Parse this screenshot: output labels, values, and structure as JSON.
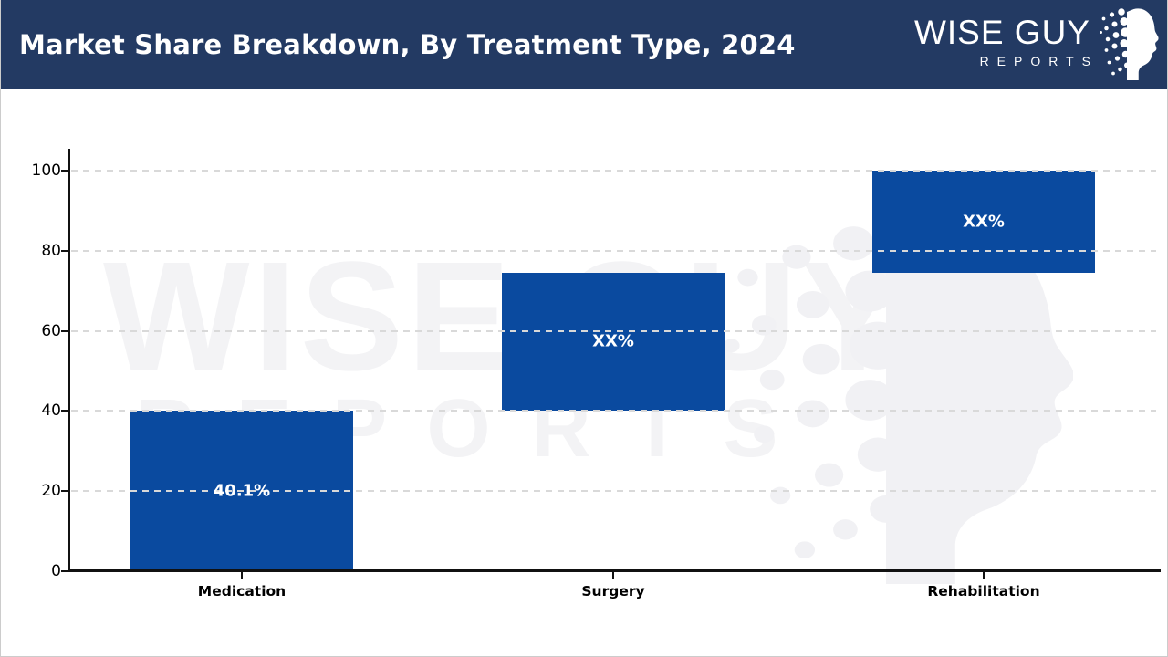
{
  "header": {
    "title": "Market Share Breakdown, By Treatment Type, 2024",
    "bg_color": "#233a63",
    "logo": {
      "line1": "WISE GUY",
      "line2": "REPORTS"
    }
  },
  "watermark": {
    "line1": "WISE GUY",
    "line2": "R E P O R T S"
  },
  "chart_data": {
    "type": "bar",
    "subtype": "floating-waterfall",
    "title": "Market Share Breakdown, By Treatment Type, 2024",
    "categories": [
      "Medication",
      "Surgery",
      "Rehabilitation"
    ],
    "series": [
      {
        "name": "Market share (%)",
        "segments": [
          {
            "category": "Medication",
            "start": 0,
            "end": 40.1,
            "label": "40.1%"
          },
          {
            "category": "Surgery",
            "start": 40.1,
            "end": 74.6,
            "label": "XX%"
          },
          {
            "category": "Rehabilitation",
            "start": 74.6,
            "end": 100,
            "label": "XX%"
          }
        ]
      }
    ],
    "xlabel": "",
    "ylabel": "",
    "ylim": [
      0,
      100
    ],
    "yticks": [
      0,
      20,
      40,
      60,
      80,
      100
    ],
    "grid": "horizontal-dashed",
    "legend": "none",
    "bar_color": "#0a4a9f",
    "bar_label_color": "#ffffff",
    "grid_color": "#d9d9d9",
    "axis_color": "#111111"
  }
}
